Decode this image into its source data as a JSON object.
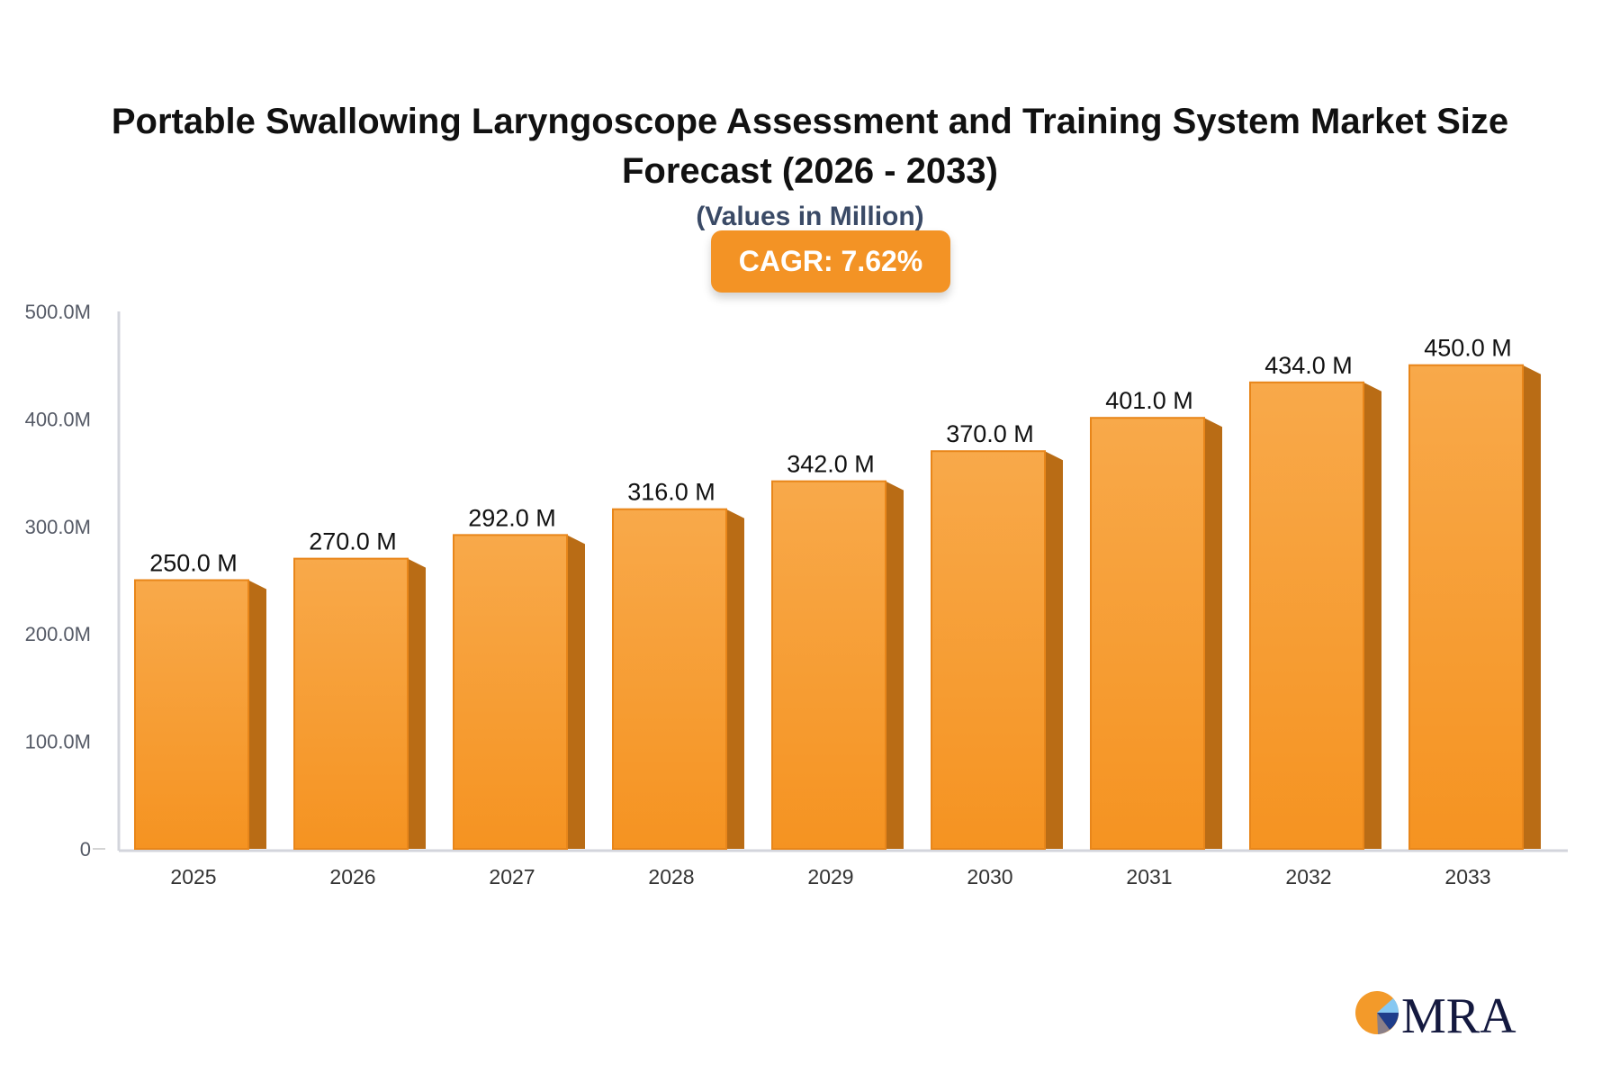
{
  "chart_data": {
    "type": "bar",
    "title": "Portable Swallowing Laryngoscope Assessment and Training System Market Size Forecast (2026 - 2033)",
    "subtitle": "(Values in Million)",
    "annotation": "CAGR: 7.62%",
    "categories": [
      "2025",
      "2026",
      "2027",
      "2028",
      "2029",
      "2030",
      "2031",
      "2032",
      "2033"
    ],
    "values": [
      250.0,
      270.0,
      292.0,
      316.0,
      342.0,
      370.0,
      401.0,
      434.0,
      450.0
    ],
    "data_labels": [
      "250.0 M",
      "270.0 M",
      "292.0 M",
      "316.0 M",
      "342.0 M",
      "370.0 M",
      "401.0 M",
      "434.0 M",
      "450.0 M"
    ],
    "ylim": [
      0,
      500
    ],
    "yticks": [
      0,
      100,
      200,
      300,
      400,
      500
    ],
    "ytick_labels": [
      "0",
      "100.0M",
      "200.0M",
      "300.0M",
      "400.0M",
      "500.0M"
    ],
    "xlabel": "",
    "ylabel": "",
    "grid": false,
    "colors": {
      "bar_top": "#f8a94a",
      "bar_bottom": "#f59321",
      "bar_side": "#b96c15",
      "accent": "#f39325"
    }
  },
  "logo": {
    "text": "MRA"
  }
}
